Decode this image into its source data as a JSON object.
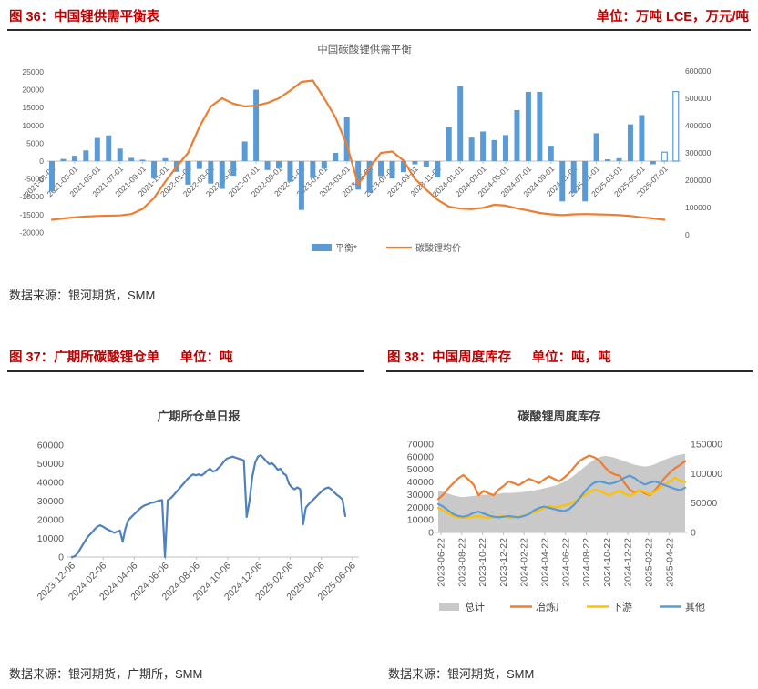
{
  "header": {
    "fig36_label": "图 36：中国锂供需平衡表",
    "fig36_unit": "单位：万吨 LCE，万元/吨"
  },
  "sections": {
    "fig36_source": "数据来源：银河期货，SMM",
    "fig37_label": "图 37：广期所碳酸锂仓单",
    "fig37_unit": "单位：吨",
    "fig37_source": "数据来源：银河期货，广期所，SMM",
    "fig38_label": "图 38：中国周度库存",
    "fig38_unit": "单位：吨，吨",
    "fig38_source": "数据来源：银河期货，SMM"
  },
  "chart_data": [
    {
      "type": "bar",
      "subtype": "bar+line-dual-axis",
      "title": "中国碳酸锂供需平衡",
      "legend": [
        "平衡*",
        "碳酸锂均价"
      ],
      "colors": {
        "bar": "#5B9BD5",
        "line": "#ED7D31"
      },
      "left_axis": {
        "label": "万吨 LCE",
        "ticks": [
          25000,
          20000,
          15000,
          10000,
          5000,
          0,
          -5000,
          -10000,
          -15000,
          -20000
        ],
        "range": [
          -20000,
          25000
        ]
      },
      "right_axis": {
        "label": "万元/吨",
        "ticks": [
          600000,
          500000,
          400000,
          300000,
          200000,
          100000,
          0
        ],
        "range": [
          0,
          600000
        ]
      },
      "x_start": "2021-01",
      "x_end": "2025-08",
      "x_tick_labels": [
        "2021-01-01",
        "2021-03-01",
        "2021-05-01",
        "2021-07-01",
        "2021-09-01",
        "2021-11-01",
        "2022-01-01",
        "2022-03-01",
        "2022-05-01",
        "2022-07-01",
        "2022-09-01",
        "2022-11-01",
        "2023-01-01",
        "2023-03-01",
        "2023-05-01",
        "2023-07-01",
        "2023-09-01",
        "2023-11-01",
        "2024-01-01",
        "2024-03-01",
        "2024-05-01",
        "2024-07-01",
        "2024-09-01",
        "2024-11-01",
        "2025-01-01",
        "2025-03-01",
        "2025-05-01",
        "2025-07-01"
      ],
      "bars": {
        "name": "平衡*",
        "forecast_from_index": 54,
        "values": [
          -8500,
          600,
          1500,
          3000,
          6500,
          7200,
          3500,
          900,
          400,
          -4800,
          800,
          -3000,
          -6600,
          -2200,
          -6300,
          -7800,
          -4100,
          5500,
          20000,
          -2500,
          -2000,
          -5800,
          -13700,
          -4700,
          -2100,
          2300,
          12300,
          -8000,
          -8800,
          -4200,
          -4900,
          -3100,
          -900,
          -1600,
          -4600,
          9500,
          21000,
          6600,
          8300,
          5900,
          7300,
          14300,
          19400,
          19400,
          4300,
          -11300,
          -9000,
          -11300,
          7800,
          500,
          800,
          10300,
          12900,
          -900,
          2500,
          19500
        ]
      },
      "line": {
        "name": "碳酸锂均价",
        "values": [
          55000,
          60000,
          64000,
          67000,
          69000,
          70000,
          71000,
          76000,
          95000,
          135000,
          195000,
          250000,
          300000,
          395000,
          470000,
          500000,
          480000,
          470000,
          473000,
          483000,
          500000,
          528000,
          560000,
          565000,
          500000,
          430000,
          330000,
          185000,
          245000,
          300000,
          305000,
          272000,
          205000,
          165000,
          128000,
          103000,
          96000,
          94000,
          99000,
          110000,
          107000,
          97000,
          89000,
          80000,
          75000,
          72000,
          75000,
          76000,
          75000,
          74000,
          72000,
          69000,
          64000,
          60000,
          55000
        ]
      }
    },
    {
      "type": "line",
      "title": "广期所仓单日报",
      "color": "#4E81BD",
      "y_axis": {
        "ticks": [
          60000,
          50000,
          40000,
          30000,
          20000,
          10000,
          0
        ],
        "range": [
          0,
          60000
        ]
      },
      "x_tick_labels": [
        "2023-12-06",
        "2024-02-06",
        "2024-04-06",
        "2024-06-06",
        "2024-08-06",
        "2024-10-06",
        "2024-12-06",
        "2025-02-06",
        "2025-04-06",
        "2025-06-06"
      ],
      "series": {
        "name": "仓单",
        "values": [
          0,
          400,
          2000,
          4500,
          7000,
          9500,
          11500,
          13000,
          14800,
          16300,
          17000,
          16300,
          15300,
          14500,
          13800,
          13000,
          13600,
          14200,
          8200,
          15500,
          19800,
          21300,
          22800,
          24300,
          25800,
          27000,
          27800,
          28300,
          29000,
          29300,
          29800,
          30300,
          30500,
          0,
          30500,
          31500,
          33000,
          34800,
          36500,
          38300,
          40000,
          41800,
          43300,
          44300,
          43800,
          44300,
          43700,
          44800,
          46300,
          47300,
          45800,
          46300,
          47800,
          49300,
          51300,
          52800,
          53300,
          53800,
          53300,
          52800,
          52300,
          51800,
          21500,
          30000,
          43000,
          50500,
          53800,
          54600,
          53000,
          51300,
          49800,
          50300,
          48800,
          46800,
          47300,
          44800,
          43800,
          39300,
          37300,
          36300,
          37300,
          36300,
          17500,
          26500,
          28300,
          29800,
          31300,
          32800,
          34300,
          35800,
          36800,
          37300,
          36300,
          34800,
          33300,
          32300,
          30800,
          22000
        ]
      }
    },
    {
      "type": "area",
      "subtype": "area+lines-dual-axis",
      "title": "碳酸锂周度库存",
      "left_axis": {
        "ticks": [
          70000,
          60000,
          50000,
          40000,
          30000,
          20000,
          10000,
          0
        ],
        "range": [
          0,
          70000
        ]
      },
      "right_axis": {
        "ticks": [
          150000,
          100000,
          50000,
          0
        ],
        "range": [
          0,
          150000
        ]
      },
      "x_tick_labels": [
        "2023-06-22",
        "2023-08-22",
        "2023-10-22",
        "2023-12-22",
        "2024-02-22",
        "2024-04-22",
        "2024-06-22",
        "2024-08-22",
        "2024-10-22",
        "2024-12-22",
        "2025-02-22",
        "2025-04-22"
      ],
      "series": [
        {
          "name": "总计",
          "type": "area",
          "axis": "right",
          "color": "#C9C9C9",
          "values": [
            71000,
            69000,
            66000,
            63000,
            61000,
            60000,
            61000,
            62000,
            63000,
            64000,
            64500,
            65000,
            66000,
            67000,
            67000,
            67500,
            68000,
            69000,
            70000,
            71500,
            73000,
            75000,
            77000,
            79000,
            82000,
            86000,
            91000,
            97000,
            104000,
            111000,
            118000,
            124000,
            128000,
            130000,
            129000,
            127000,
            124000,
            121000,
            118000,
            115000,
            113000,
            112000,
            113000,
            116000,
            120000,
            124000,
            127000,
            130000,
            132000,
            133500
          ]
        },
        {
          "name": "冶炼厂",
          "type": "line",
          "axis": "left",
          "color": "#ED7D31",
          "values": [
            26500,
            30000,
            35000,
            39000,
            43000,
            45500,
            42000,
            38000,
            29500,
            33000,
            31000,
            29500,
            34000,
            37000,
            40500,
            39000,
            37500,
            40000,
            42500,
            41000,
            39000,
            42000,
            44500,
            42500,
            40500,
            43500,
            47000,
            52000,
            56500,
            59000,
            61000,
            59500,
            57000,
            52000,
            48000,
            46000,
            45000,
            39000,
            34000,
            31500,
            33500,
            31000,
            29500,
            33500,
            38500,
            43500,
            47500,
            51000,
            53500,
            56500
          ]
        },
        {
          "name": "下游",
          "type": "line",
          "axis": "left",
          "color": "#FFC000",
          "values": [
            19500,
            17500,
            15000,
            13000,
            12000,
            11500,
            12000,
            12500,
            13000,
            12000,
            11500,
            12000,
            12500,
            13000,
            12000,
            11500,
            12500,
            13500,
            14500,
            16000,
            17500,
            19500,
            21000,
            20000,
            20500,
            21500,
            22500,
            24500,
            27000,
            29500,
            32000,
            34000,
            33000,
            31000,
            29500,
            31500,
            33000,
            30500,
            29000,
            31000,
            33500,
            32000,
            30000,
            32500,
            35500,
            38000,
            40500,
            43500,
            41000,
            40000
          ]
        },
        {
          "name": "其他",
          "type": "line",
          "axis": "left",
          "color": "#5B9BD5",
          "values": [
            22500,
            20500,
            17500,
            14500,
            13000,
            12500,
            13500,
            15500,
            16500,
            15000,
            13500,
            12500,
            12000,
            12500,
            13000,
            12500,
            12000,
            13000,
            14500,
            17500,
            19500,
            20500,
            19500,
            18500,
            17500,
            17000,
            18500,
            22000,
            27000,
            32000,
            36500,
            39500,
            40500,
            39500,
            38500,
            39500,
            41000,
            43500,
            45000,
            43000,
            40000,
            38000,
            39500,
            40500,
            39000,
            37500,
            36000,
            34500,
            33500,
            35500
          ]
        }
      ]
    }
  ]
}
